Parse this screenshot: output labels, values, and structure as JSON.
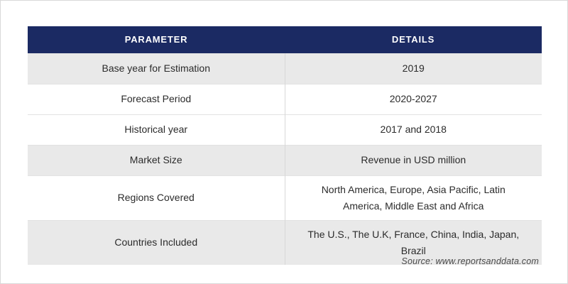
{
  "table": {
    "headers": {
      "parameter": "PARAMETER",
      "details": "DETAILS"
    },
    "rows": [
      {
        "parameter": "Base year for Estimation",
        "details": "2019"
      },
      {
        "parameter": "Forecast Period",
        "details": "2020-2027"
      },
      {
        "parameter": "Historical year",
        "details": "2017 and 2018"
      },
      {
        "parameter": "Market Size",
        "details": "Revenue in USD million"
      },
      {
        "parameter": "Regions Covered",
        "details": "North America, Europe, Asia Pacific, Latin America, Middle East and Africa"
      },
      {
        "parameter": "Countries Included",
        "details": "The U.S., The U.K, France, China, India, Japan, Brazil"
      }
    ]
  },
  "source": {
    "label": "Source: www.reportsanddata.com"
  },
  "colors": {
    "header_bg": "#1b2a63",
    "header_text": "#ffffff",
    "row_shaded_bg": "#e9e9e9",
    "row_plain_bg": "#ffffff"
  },
  "chart_data": {
    "type": "table",
    "title": "Report Scope Parameters",
    "columns": [
      "PARAMETER",
      "DETAILS"
    ],
    "rows": [
      [
        "Base year for Estimation",
        "2019"
      ],
      [
        "Forecast Period",
        "2020-2027"
      ],
      [
        "Historical year",
        "2017 and 2018"
      ],
      [
        "Market Size",
        "Revenue in USD million"
      ],
      [
        "Regions Covered",
        "North America, Europe, Asia Pacific, Latin America, Middle East and Africa"
      ],
      [
        "Countries Included",
        "The U.S., The U.K, France, China, India, Japan, Brazil"
      ]
    ],
    "source": "Source: www.reportsanddata.com"
  }
}
